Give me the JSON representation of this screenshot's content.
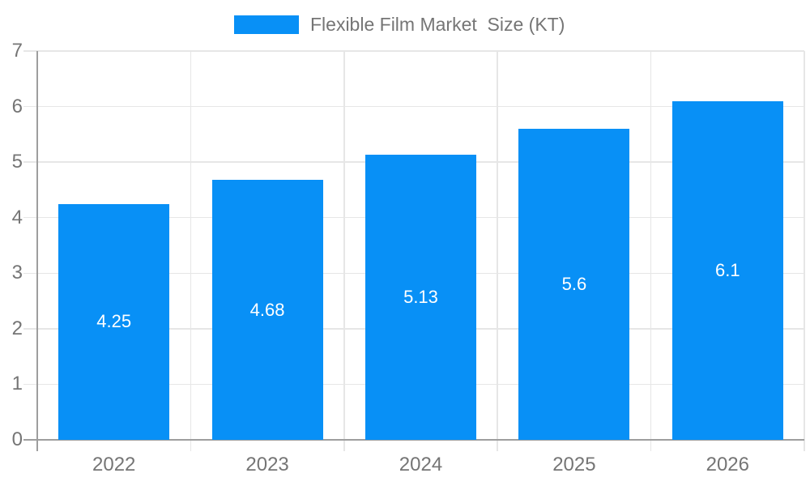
{
  "chart_data": {
    "type": "bar",
    "title": "Flexible Film Market  Size (KT)",
    "legend": {
      "label": "Flexible Film Market  Size (KT)",
      "position": "top"
    },
    "categories": [
      "2022",
      "2023",
      "2024",
      "2025",
      "2026"
    ],
    "values": [
      4.25,
      4.68,
      5.13,
      5.6,
      6.1
    ],
    "value_labels": [
      "4.25",
      "4.68",
      "5.13",
      "5.6",
      "6.1"
    ],
    "xlabel": "",
    "ylabel": "",
    "ylim": [
      0,
      7
    ],
    "y_ticks": [
      0,
      1,
      2,
      3,
      4,
      5,
      6,
      7
    ],
    "grid": true,
    "colors": {
      "bar": "#0890f6",
      "bar_label_text": "#ffffff",
      "grid_line": "#e6e6e6",
      "axis_line": "#9e9e9e",
      "tick_label": "#757575",
      "legend_text": "#757575",
      "background": "#ffffff"
    }
  }
}
